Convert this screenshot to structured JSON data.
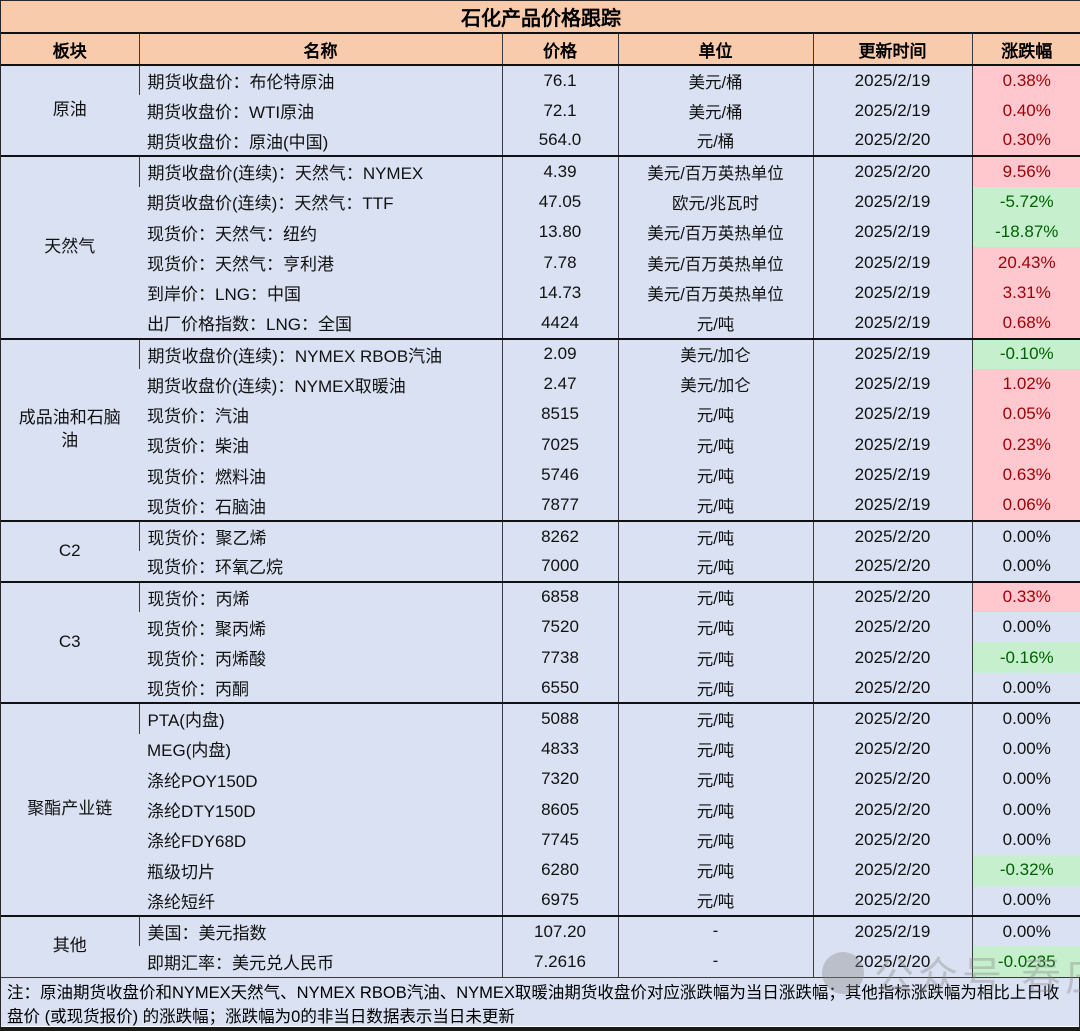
{
  "title": "石化产品价格跟踪",
  "table": {
    "columns": [
      "板块",
      "名称",
      "价格",
      "单位",
      "更新时间",
      "涨跌幅"
    ],
    "sections": [
      {
        "sector": "原油",
        "rows": [
          {
            "name": "期货收盘价：布伦特原油",
            "price": "76.1",
            "unit": "美元/桶",
            "date": "2025/2/19",
            "change": "0.38%",
            "trend": "up"
          },
          {
            "name": "期货收盘价：WTI原油",
            "price": "72.1",
            "unit": "美元/桶",
            "date": "2025/2/19",
            "change": "0.40%",
            "trend": "up"
          },
          {
            "name": "期货收盘价：原油(中国)",
            "price": "564.0",
            "unit": "元/桶",
            "date": "2025/2/20",
            "change": "0.30%",
            "trend": "up"
          }
        ]
      },
      {
        "sector": "天然气",
        "rows": [
          {
            "name": "期货收盘价(连续)：天然气：NYMEX",
            "price": "4.39",
            "unit": "美元/百万英热单位",
            "date": "2025/2/20",
            "change": "9.56%",
            "trend": "up"
          },
          {
            "name": "期货收盘价(连续)：天然气：TTF",
            "price": "47.05",
            "unit": "欧元/兆瓦时",
            "date": "2025/2/19",
            "change": "-5.72%",
            "trend": "down"
          },
          {
            "name": "现货价：天然气：纽约",
            "price": "13.80",
            "unit": "美元/百万英热单位",
            "date": "2025/2/19",
            "change": "-18.87%",
            "trend": "down"
          },
          {
            "name": "现货价：天然气：亨利港",
            "price": "7.78",
            "unit": "美元/百万英热单位",
            "date": "2025/2/19",
            "change": "20.43%",
            "trend": "up"
          },
          {
            "name": "到岸价：LNG：中国",
            "price": "14.73",
            "unit": "美元/百万英热单位",
            "date": "2025/2/19",
            "change": "3.31%",
            "trend": "up"
          },
          {
            "name": "出厂价格指数：LNG：全国",
            "price": "4424",
            "unit": "元/吨",
            "date": "2025/2/19",
            "change": "0.68%",
            "trend": "up"
          }
        ]
      },
      {
        "sector": "成品油和石脑油",
        "rows": [
          {
            "name": "期货收盘价(连续)：NYMEX RBOB汽油",
            "price": "2.09",
            "unit": "美元/加仑",
            "date": "2025/2/19",
            "change": "-0.10%",
            "trend": "down"
          },
          {
            "name": "期货收盘价(连续)：NYMEX取暖油",
            "price": "2.47",
            "unit": "美元/加仑",
            "date": "2025/2/19",
            "change": "1.02%",
            "trend": "up"
          },
          {
            "name": "现货价：汽油",
            "price": "8515",
            "unit": "元/吨",
            "date": "2025/2/19",
            "change": "0.05%",
            "trend": "up"
          },
          {
            "name": "现货价：柴油",
            "price": "7025",
            "unit": "元/吨",
            "date": "2025/2/19",
            "change": "0.23%",
            "trend": "up"
          },
          {
            "name": "现货价：燃料油",
            "price": "5746",
            "unit": "元/吨",
            "date": "2025/2/19",
            "change": "0.63%",
            "trend": "up"
          },
          {
            "name": "现货价：石脑油",
            "price": "7877",
            "unit": "元/吨",
            "date": "2025/2/19",
            "change": "0.06%",
            "trend": "up"
          }
        ]
      },
      {
        "sector": "C2",
        "rows": [
          {
            "name": "现货价：聚乙烯",
            "price": "8262",
            "unit": "元/吨",
            "date": "2025/2/20",
            "change": "0.00%",
            "trend": "flat"
          },
          {
            "name": "现货价：环氧乙烷",
            "price": "7000",
            "unit": "元/吨",
            "date": "2025/2/20",
            "change": "0.00%",
            "trend": "flat"
          }
        ]
      },
      {
        "sector": "C3",
        "rows": [
          {
            "name": "现货价：丙烯",
            "price": "6858",
            "unit": "元/吨",
            "date": "2025/2/20",
            "change": "0.33%",
            "trend": "up"
          },
          {
            "name": "现货价：聚丙烯",
            "price": "7520",
            "unit": "元/吨",
            "date": "2025/2/20",
            "change": "0.00%",
            "trend": "flat"
          },
          {
            "name": "现货价：丙烯酸",
            "price": "7738",
            "unit": "元/吨",
            "date": "2025/2/20",
            "change": "-0.16%",
            "trend": "down"
          },
          {
            "name": "现货价：丙酮",
            "price": "6550",
            "unit": "元/吨",
            "date": "2025/2/20",
            "change": "0.00%",
            "trend": "flat"
          }
        ]
      },
      {
        "sector": "聚酯产业链",
        "rows": [
          {
            "name": "PTA(内盘)",
            "price": "5088",
            "unit": "元/吨",
            "date": "2025/2/20",
            "change": "0.00%",
            "trend": "flat"
          },
          {
            "name": "MEG(内盘)",
            "price": "4833",
            "unit": "元/吨",
            "date": "2025/2/20",
            "change": "0.00%",
            "trend": "flat"
          },
          {
            "name": "涤纶POY150D",
            "price": "7320",
            "unit": "元/吨",
            "date": "2025/2/20",
            "change": "0.00%",
            "trend": "flat"
          },
          {
            "name": "涤纶DTY150D",
            "price": "8605",
            "unit": "元/吨",
            "date": "2025/2/20",
            "change": "0.00%",
            "trend": "flat"
          },
          {
            "name": "涤纶FDY68D",
            "price": "7745",
            "unit": "元/吨",
            "date": "2025/2/20",
            "change": "0.00%",
            "trend": "flat"
          },
          {
            "name": "瓶级切片",
            "price": "6280",
            "unit": "元/吨",
            "date": "2025/2/20",
            "change": "-0.32%",
            "trend": "down"
          },
          {
            "name": "涤纶短纤",
            "price": "6975",
            "unit": "元/吨",
            "date": "2025/2/20",
            "change": "0.00%",
            "trend": "flat"
          }
        ]
      },
      {
        "sector": "其他",
        "rows": [
          {
            "name": "美国：美元指数",
            "price": "107.20",
            "unit": "-",
            "date": "2025/2/19",
            "change": "0.00%",
            "trend": "flat"
          },
          {
            "name": "即期汇率：美元兑人民币",
            "price": "7.2616",
            "unit": "-",
            "date": "2025/2/20",
            "change": "-0.0235",
            "trend": "down"
          }
        ]
      }
    ]
  },
  "note": "注：原油期货收盘价和NYMEX天然气、NYMEX RBOB汽油、NYMEX取暖油期货收盘价对应涨跌幅为当日涨跌幅；其他指标涨跌幅为相比上日收盘价 (或现货报价) 的涨跌幅；涨跌幅为0的非当日数据表示当日未更新",
  "watermark": {
    "text": "公众号  春庄煤炭"
  },
  "colors": {
    "header_bg": "#F8CBAD",
    "body_bg": "#D9E1F2",
    "up_bg": "#FFC7CE",
    "up_text": "#9C0006",
    "down_bg": "#C6EFCE",
    "down_text": "#006100",
    "border": "#3a3a3a",
    "section_border": "#111111",
    "text": "#111111"
  }
}
